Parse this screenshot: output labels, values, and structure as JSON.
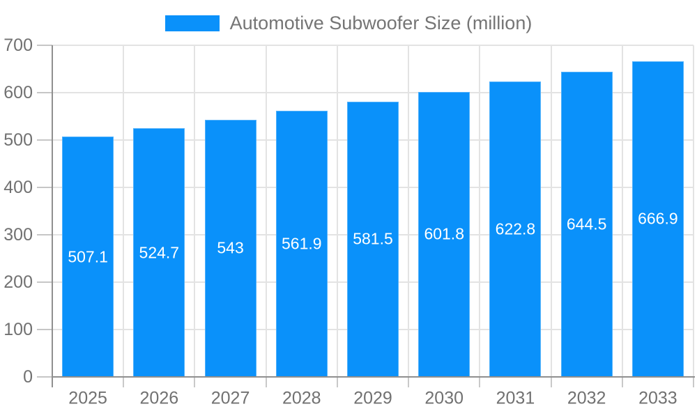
{
  "legend": {
    "label": "Automotive Subwoofer Size (million)"
  },
  "colors": {
    "bar": "#0a91fa",
    "bar_edge": "rgba(255,255,255,0.3)",
    "axis": "#8f8f8f",
    "grid": "#e3e3e3",
    "tick": "#c6c6c6",
    "text": "#717171",
    "value_text": "#ffffff",
    "background": "#ffffff"
  },
  "chart_data": {
    "type": "bar",
    "title": "Automotive Subwoofer Size (million)",
    "categories": [
      "2025",
      "2026",
      "2027",
      "2028",
      "2029",
      "2030",
      "2031",
      "2032",
      "2033"
    ],
    "values": [
      507.1,
      524.7,
      543,
      561.9,
      581.5,
      601.8,
      622.8,
      644.5,
      666.9
    ],
    "value_labels": [
      "507.1",
      "524.7",
      "543",
      "561.9",
      "581.5",
      "601.8",
      "622.8",
      "644.5",
      "666.9"
    ],
    "xlabel": "",
    "ylabel": "",
    "ylim": [
      0,
      700
    ],
    "ytick_step": 100,
    "yticks": [
      0,
      100,
      200,
      300,
      400,
      500,
      600,
      700
    ],
    "grid": true,
    "legend_position": "top",
    "bar_label_position": "center"
  }
}
